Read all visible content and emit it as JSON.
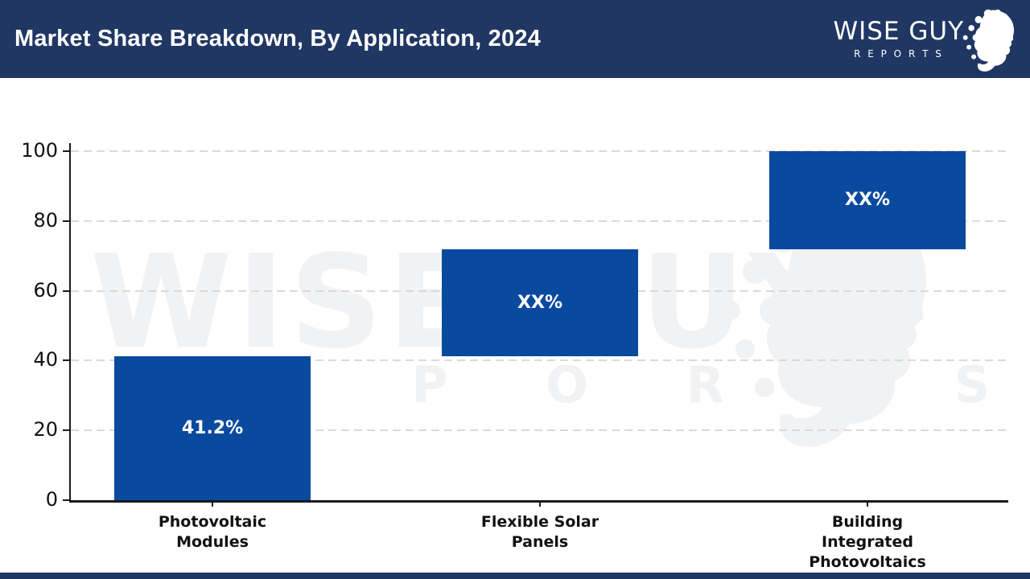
{
  "header": {
    "title": "Market Share Breakdown, By Application, 2024",
    "logo": {
      "line1": "WISE GUY",
      "line2": "R E P O R T S"
    }
  },
  "watermark": {
    "line1": "WISE GUY",
    "line2": "R E P O R T S"
  },
  "footer": {},
  "colors": {
    "header_bg": "#213763",
    "bar_blue": "#0a4a9e",
    "bar_label": "#ffffff",
    "grid": "#d9d9d9",
    "axis": "#1a1a1a",
    "watermark": "#f1f2f4"
  },
  "chart_data": {
    "type": "bar",
    "variant": "floating-stacked-percentage",
    "title": "Market Share Breakdown, By Application, 2024",
    "categories": [
      "Photovoltaic Modules",
      "Flexible Solar Panels",
      "Building Integrated Photovoltaics"
    ],
    "category_lines": [
      [
        "Photovoltaic",
        "Modules"
      ],
      [
        "Flexible Solar",
        "Panels"
      ],
      [
        "Building",
        "Integrated",
        "Photovoltaics"
      ]
    ],
    "segments": [
      {
        "category": "Photovoltaic Modules",
        "start": 0,
        "end": 41.2,
        "label": "41.2%"
      },
      {
        "category": "Flexible Solar Panels",
        "start": 41.2,
        "end": 72,
        "label": "XX%"
      },
      {
        "category": "Building Integrated Photovoltaics",
        "start": 72,
        "end": 100,
        "label": "XX%"
      }
    ],
    "yticks": [
      0,
      20,
      40,
      60,
      80,
      100
    ],
    "ylim": [
      0,
      105
    ],
    "xlabel": "",
    "ylabel": "",
    "grid": "horizontal-dashed",
    "legend": "none",
    "bar_color": "#0a4a9e",
    "label_color": "#ffffff"
  }
}
